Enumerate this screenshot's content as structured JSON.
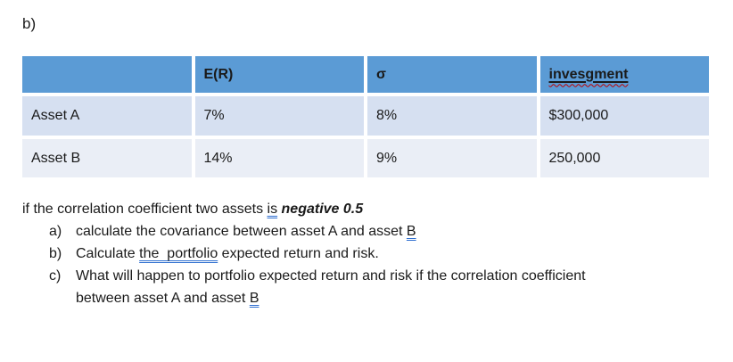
{
  "document": {
    "section_label": "b)"
  },
  "table": {
    "headers": [
      "",
      "E(R)",
      "σ",
      "invesgment"
    ],
    "rows": [
      [
        "Asset A",
        "7%",
        "8%",
        "$300,000"
      ],
      [
        "Asset B",
        "14%",
        "9%",
        "250,000"
      ]
    ]
  },
  "question": {
    "intro": {
      "prefix": "if the correlation coefficient two assets ",
      "grammar_flagged": "is",
      "separator": " ",
      "emphasis": "negative 0.5"
    },
    "items": [
      {
        "marker": "a)",
        "prefix": "calculate the covariance between asset A and asset ",
        "flagged": "B"
      },
      {
        "marker": "b)",
        "prefix": "Calculate ",
        "flagged": "the  portfolio",
        "suffix": " expected return and risk."
      },
      {
        "marker": "c)",
        "line1": "What will happen to portfolio expected return and risk if the correlation coefficient",
        "line2_prefix": "between asset A and asset ",
        "flagged": "B"
      }
    ]
  },
  "colors": {
    "header_fill": "#5B9BD5",
    "row_odd_fill": "#D6E0F1",
    "row_even_fill": "#EAEEF6",
    "grammar_underline": "#2F6FD0",
    "spellcheck_underline": "#C00000",
    "text": "#1A1A1A"
  }
}
